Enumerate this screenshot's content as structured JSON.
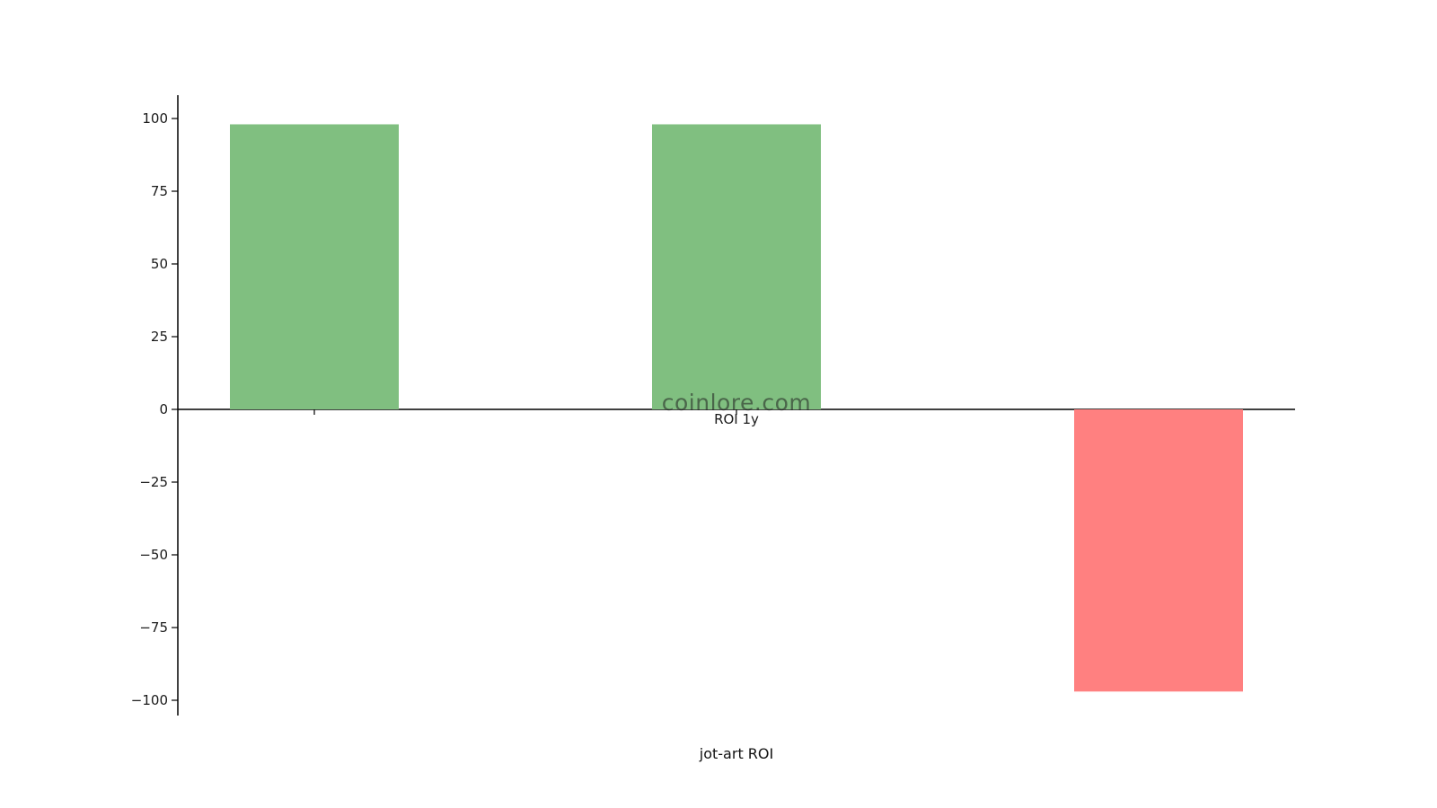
{
  "chart_data": {
    "type": "bar",
    "categories": [
      "",
      "ROI 1y",
      ""
    ],
    "values": [
      98,
      98,
      -97
    ],
    "bar_colors": [
      "#80bf80",
      "#80bf80",
      "#ff8080"
    ],
    "title": "",
    "xlabel": "jot-art ROI",
    "ylabel": "",
    "ylim": [
      -105,
      108
    ],
    "yticks": [
      {
        "value": 100,
        "label": "100"
      },
      {
        "value": 75,
        "label": "75"
      },
      {
        "value": 50,
        "label": "50"
      },
      {
        "value": 25,
        "label": "25"
      },
      {
        "value": 0,
        "label": "0"
      },
      {
        "value": -25,
        "label": "−25"
      },
      {
        "value": -50,
        "label": "−50"
      },
      {
        "value": -75,
        "label": "−75"
      },
      {
        "value": -100,
        "label": "−100"
      }
    ],
    "grid": false,
    "legend": "none",
    "watermark": "coinlore.com",
    "axis_color": "#000000",
    "text_color": "#1a1a1a"
  }
}
